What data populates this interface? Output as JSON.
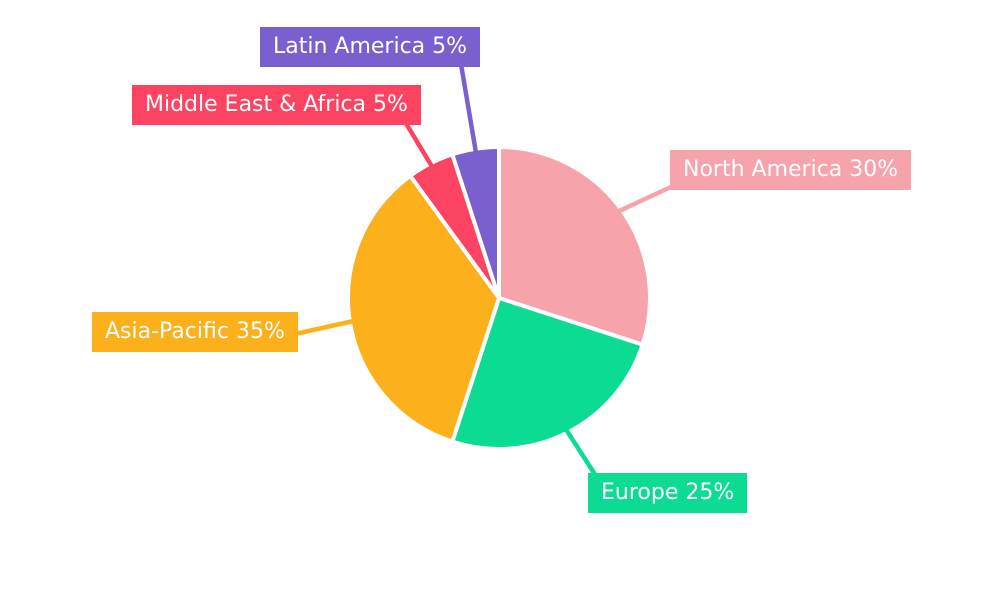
{
  "page": {
    "background_color": "#ffffff",
    "text_color": "#ffffff"
  },
  "chart_data": {
    "type": "pie",
    "title": "",
    "categories": [
      "North America",
      "Europe",
      "Asia-Pacific",
      "Middle East & Africa",
      "Latin America"
    ],
    "values": [
      30,
      25,
      35,
      5,
      5
    ],
    "unit": "%",
    "colors": [
      "#f7a3ab",
      "#0cdc92",
      "#fcb01c",
      "#fc4362",
      "#7a60ce"
    ],
    "labels_display": [
      "North America 30%",
      "Europe 25%",
      "Asia-Pacific 35%",
      "Middle East & Africa 5%",
      "Latin America 5%"
    ],
    "start_angle_deg": 0,
    "direction": "clockwise",
    "slice_gap_color": "#ffffff",
    "legend": "none",
    "annotation_style": "colored-label-boxes-with-leader-lines"
  }
}
